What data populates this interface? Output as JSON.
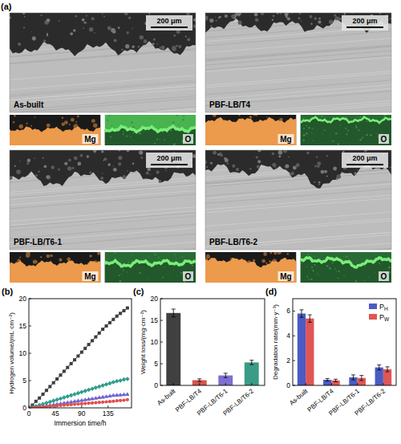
{
  "micrographs": {
    "panel": "(a)",
    "scale_bar": "200 μm",
    "images": [
      {
        "label": "As-built",
        "maps": [
          "Mg",
          "O"
        ]
      },
      {
        "label": "PBF-LB/T4",
        "maps": [
          "Mg",
          "O"
        ]
      },
      {
        "label": "PBF-LB/T6-1",
        "maps": [
          "Mg",
          "O"
        ]
      },
      {
        "label": "PBF-LB/T6-2",
        "maps": [
          "Mg",
          "O"
        ]
      }
    ]
  },
  "chart_data": [
    {
      "panel": "(b)",
      "type": "line",
      "x_label": "Immersion time/h",
      "y_label": "Hydrogen volume/(mL·cm⁻²)",
      "x": [
        0,
        6,
        12,
        18,
        24,
        30,
        36,
        42,
        48,
        54,
        60,
        66,
        72,
        78,
        84,
        90,
        96,
        102,
        108,
        114,
        120,
        126,
        132,
        138,
        144,
        150,
        156,
        162,
        168
      ],
      "xlim": [
        0,
        175
      ],
      "xticks": [
        0,
        45,
        90,
        135
      ],
      "ylim": [
        0,
        20
      ],
      "yticks": [
        0,
        5,
        10,
        15,
        20
      ],
      "grid": false,
      "series": [
        {
          "color": "#3d3d3d",
          "marker": "square",
          "line_style": "solid",
          "values": [
            0,
            0.5,
            1.2,
            1.8,
            2.5,
            3.2,
            3.9,
            4.6,
            5.3,
            6.0,
            6.7,
            7.4,
            8.1,
            8.8,
            9.5,
            10.2,
            10.9,
            11.6,
            12.3,
            13.0,
            13.7,
            14.4,
            15.0,
            15.6,
            16.2,
            16.8,
            17.3,
            17.8,
            18.3
          ]
        },
        {
          "color": "#2f9e8c",
          "marker": "diamond",
          "line_style": "solid",
          "values": [
            0,
            0.1,
            0.3,
            0.5,
            0.7,
            0.9,
            1.1,
            1.3,
            1.5,
            1.7,
            1.9,
            2.1,
            2.3,
            2.5,
            2.7,
            2.9,
            3.1,
            3.3,
            3.5,
            3.7,
            3.9,
            4.1,
            4.3,
            4.5,
            4.7,
            4.9,
            5.0,
            5.2,
            5.3
          ]
        },
        {
          "color": "#6f63c9",
          "marker": "triangle",
          "line_style": "solid",
          "values": [
            0,
            0.05,
            0.1,
            0.2,
            0.3,
            0.4,
            0.5,
            0.6,
            0.7,
            0.8,
            0.9,
            1.0,
            1.1,
            1.2,
            1.3,
            1.4,
            1.5,
            1.6,
            1.7,
            1.8,
            1.9,
            2.0,
            2.1,
            2.2,
            2.3,
            2.35,
            2.4,
            2.45,
            2.5
          ]
        },
        {
          "color": "#e0504f",
          "marker": "circle",
          "line_style": "solid",
          "values": [
            0,
            0.05,
            0.1,
            0.15,
            0.2,
            0.25,
            0.3,
            0.35,
            0.4,
            0.45,
            0.5,
            0.55,
            0.6,
            0.65,
            0.7,
            0.75,
            0.8,
            0.85,
            0.9,
            0.95,
            1.0,
            1.05,
            1.1,
            1.15,
            1.2,
            1.3,
            1.35,
            1.4,
            1.5
          ]
        }
      ]
    },
    {
      "panel": "(c)",
      "type": "bar",
      "y_label": "Weight loss/(mg·cm⁻²)",
      "categories": [
        "As-built",
        "PBF-LB/T4",
        "PBF-LB/T6-1",
        "PBF-LB/T6-2"
      ],
      "values": [
        16.7,
        1.2,
        2.3,
        5.3
      ],
      "errors": [
        0.9,
        0.3,
        0.5,
        0.5
      ],
      "colors": [
        "#404040",
        "#d9534f",
        "#7b6fd0",
        "#3a9b86"
      ],
      "ylim": [
        0,
        20
      ],
      "yticks": [
        0,
        5,
        10,
        15,
        20
      ],
      "grid": false
    },
    {
      "panel": "(d)",
      "type": "bar",
      "y_label": "Degradation rate/(mm·y⁻¹)",
      "categories": [
        "As-built",
        "PBF-LB/T4",
        "PBF-LB/T6-1",
        "PBF-LB/T6-2"
      ],
      "series": [
        {
          "name": "PH",
          "color": "#4a5bc4",
          "values": [
            5.8,
            0.45,
            0.65,
            1.45
          ],
          "errors": [
            0.3,
            0.1,
            0.2,
            0.2
          ]
        },
        {
          "name": "PW",
          "color": "#e05555",
          "values": [
            5.4,
            0.4,
            0.6,
            1.3
          ],
          "errors": [
            0.3,
            0.1,
            0.2,
            0.2
          ]
        }
      ],
      "ylim": [
        0,
        7
      ],
      "yticks": [
        0,
        2,
        4,
        6
      ],
      "legend": "upper right",
      "grid": false
    }
  ]
}
